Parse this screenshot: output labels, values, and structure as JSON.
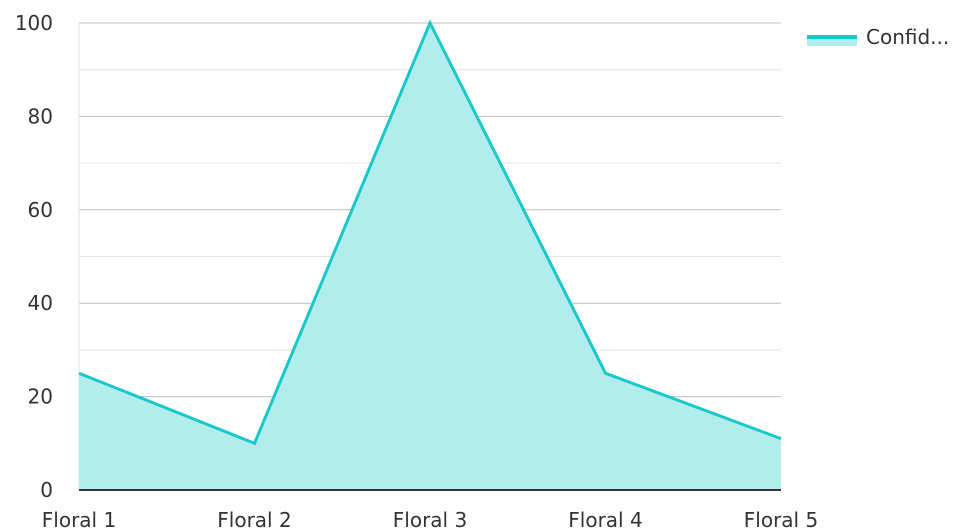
{
  "chart_data": {
    "type": "area",
    "categories": [
      "Floral 1",
      "Floral 2",
      "Floral 3",
      "Floral 4",
      "Floral 5"
    ],
    "series": [
      {
        "name": "Confid...",
        "values": [
          25,
          10,
          100,
          25,
          11
        ]
      }
    ],
    "ylim": [
      0,
      100
    ],
    "yticks": [
      0,
      20,
      40,
      60,
      80,
      100
    ],
    "grid": true,
    "legend": "top-right",
    "colors": {
      "line": "#1cc7c9",
      "fill": "#b2eded",
      "grid_major": "#bdbdbd",
      "grid_minor": "#e3e3e3",
      "axis": "#333333"
    }
  }
}
